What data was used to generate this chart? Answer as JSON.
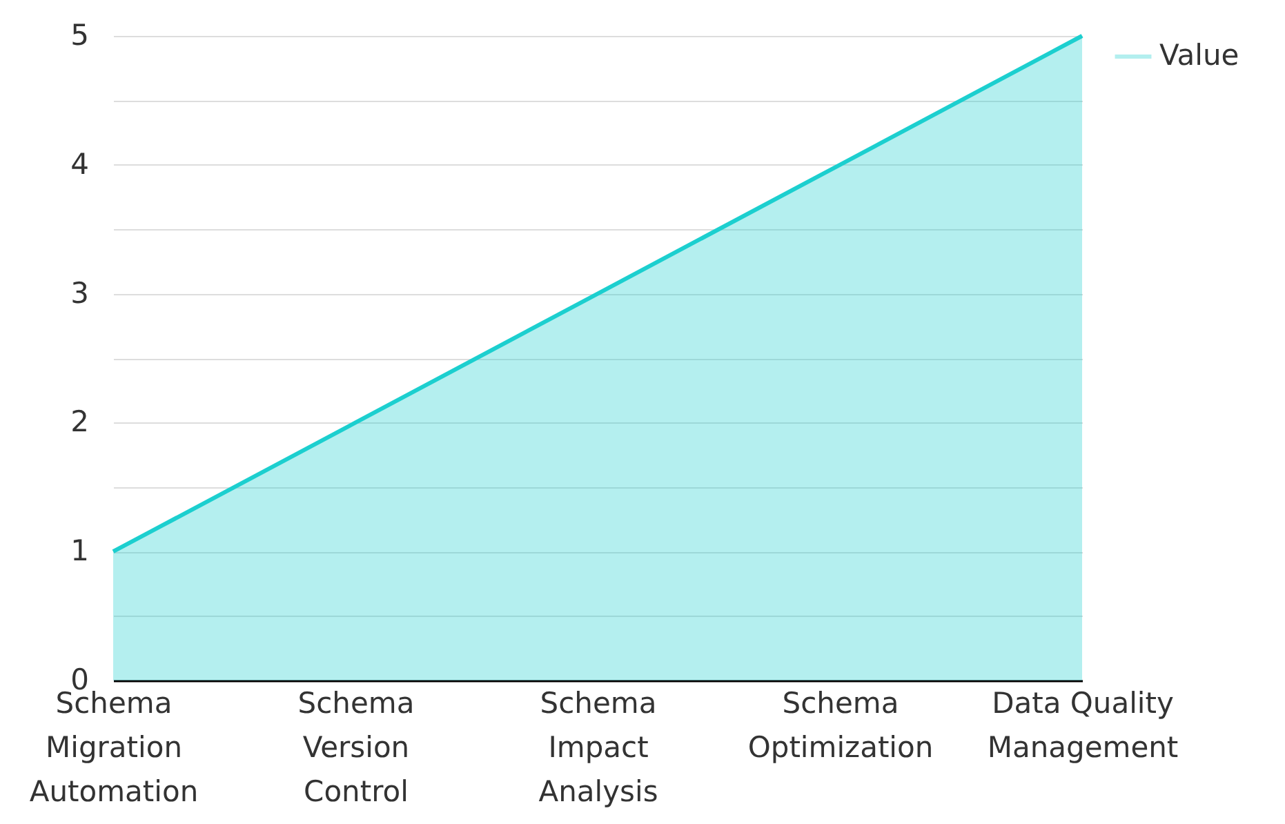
{
  "chart_data": {
    "type": "area",
    "categories": [
      "Schema Migration Automation",
      "Schema Version Control",
      "Schema Impact Analysis",
      "Schema Optimization",
      "Data Quality Management"
    ],
    "series": [
      {
        "name": "Value",
        "color": "#1ccfcf",
        "values": [
          1,
          2,
          3,
          4,
          5
        ]
      }
    ],
    "ylim": [
      0,
      5
    ],
    "yticks": [
      0,
      {
        "value": 0.5,
        "label": null
      },
      1,
      {
        "value": 1.5,
        "label": null
      },
      2,
      {
        "value": 2.5,
        "label": null
      },
      3,
      {
        "value": 3.5,
        "label": null
      },
      4,
      {
        "value": 4.5,
        "label": null
      },
      5
    ],
    "grid": true,
    "legend": "top right"
  }
}
